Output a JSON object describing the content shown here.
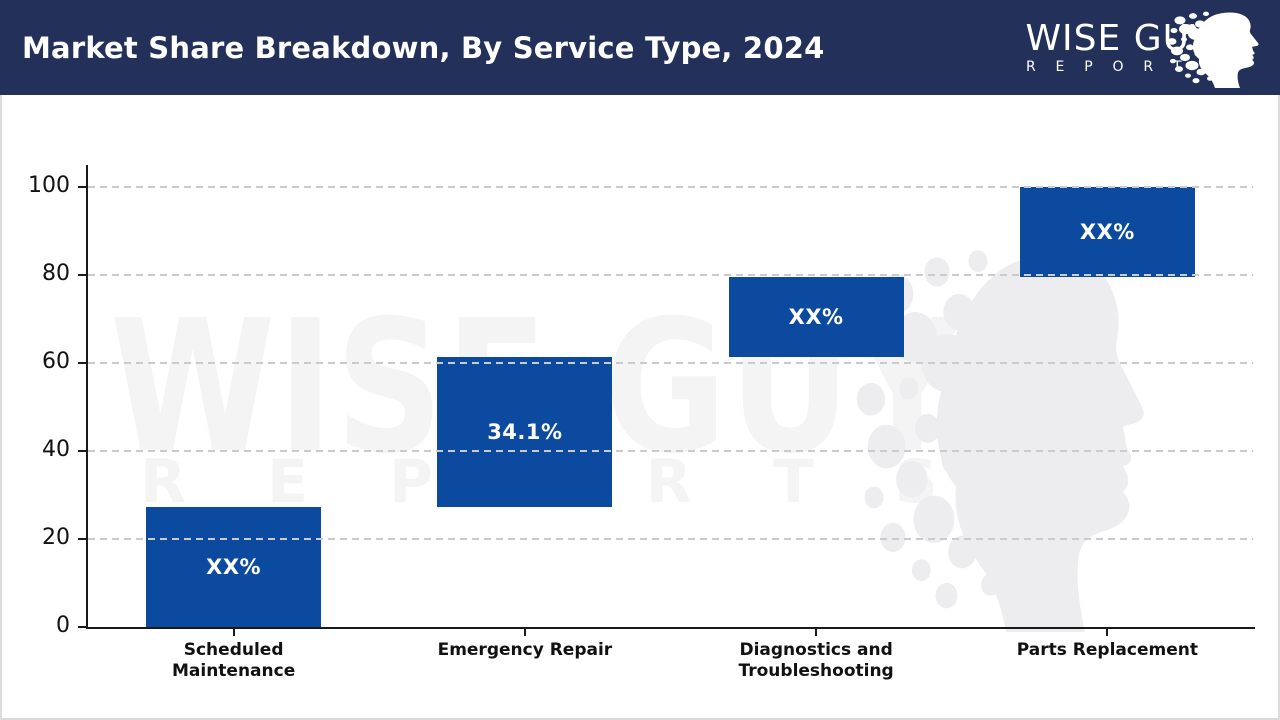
{
  "header": {
    "title": "Market Share Breakdown, By Service Type, 2024",
    "logo_line1": "WISE GUY",
    "logo_line2": "R E P O R T S"
  },
  "watermark": {
    "line1": "WISE GUY",
    "line2": "R E P O R T S"
  },
  "colors": {
    "header_bg": "#22305a",
    "bar": "#0b4a9e",
    "grid": "#cbcbcb",
    "axis": "#1a1a1a",
    "bar_label": "#ffffff"
  },
  "chart_data": {
    "type": "bar",
    "subtype": "floating-waterfall",
    "title": "Market Share Breakdown, By Service Type, 2024",
    "categories": [
      "Scheduled\nMaintenance",
      "Emergency Repair",
      "Diagnostics and\nTroubleshooting",
      "Parts Replacement"
    ],
    "bars": [
      {
        "category": "Scheduled Maintenance",
        "start": 0,
        "end": 27.2,
        "height": 27.2,
        "value_label": "XX%"
      },
      {
        "category": "Emergency Repair",
        "start": 27.2,
        "end": 61.3,
        "height": 34.1,
        "value_label": "34.1%"
      },
      {
        "category": "Diagnostics and Troubleshooting",
        "start": 61.3,
        "end": 79.4,
        "height": 18.1,
        "value_label": "XX%"
      },
      {
        "category": "Parts Replacement",
        "start": 79.4,
        "end": 100.0,
        "height": 20.6,
        "value_label": "XX%"
      }
    ],
    "yticks": [
      0,
      20,
      40,
      60,
      80,
      100
    ],
    "ylim": [
      0,
      105
    ],
    "xlabel": "",
    "ylabel": "",
    "grid": "dashed-horizontal",
    "legend": false
  }
}
